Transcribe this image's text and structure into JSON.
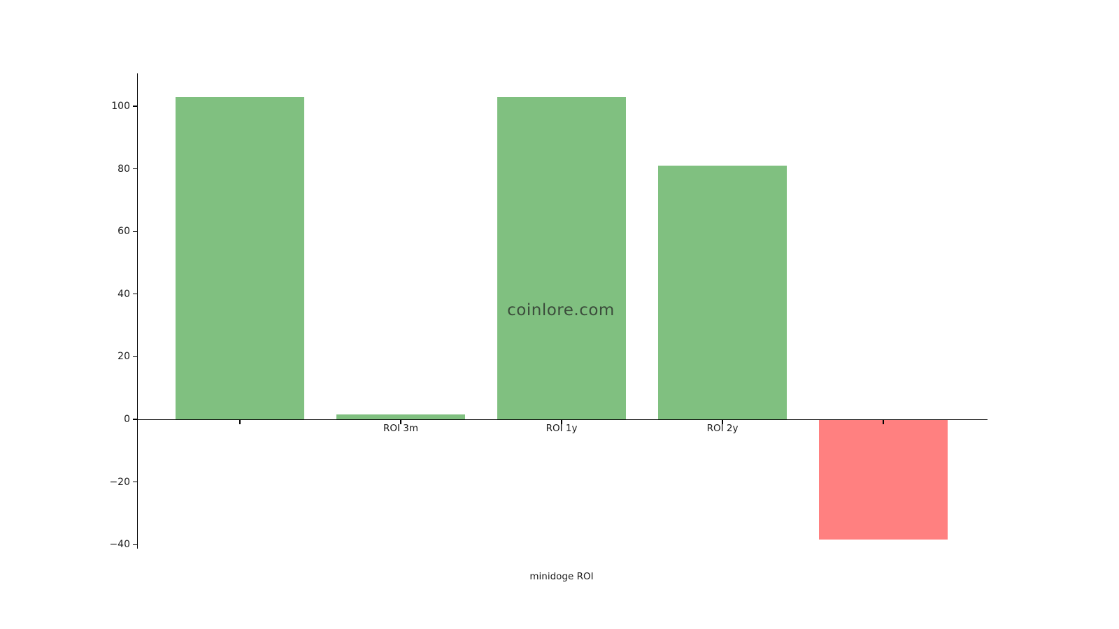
{
  "watermark": "coinlore.com",
  "chart_data": {
    "type": "bar",
    "title": "",
    "xlabel": "minidoge ROI",
    "ylabel": "",
    "categories": [
      "",
      "ROI 3m",
      "ROI 1y",
      "ROI 2y",
      ""
    ],
    "values": [
      103,
      1.6,
      103,
      81,
      -38
    ],
    "yticks": [
      100,
      80,
      60,
      40,
      20,
      0,
      -20,
      -40
    ],
    "ylim": [
      -41.3,
      110.5
    ],
    "grid": false,
    "legend_position": "none",
    "colors": {
      "positive_bar": "#80c080",
      "negative_bar": "#ff8080",
      "axis": "#000000",
      "tick_text": "#1a1a1a",
      "watermark_text": "#2c2c2c"
    }
  }
}
